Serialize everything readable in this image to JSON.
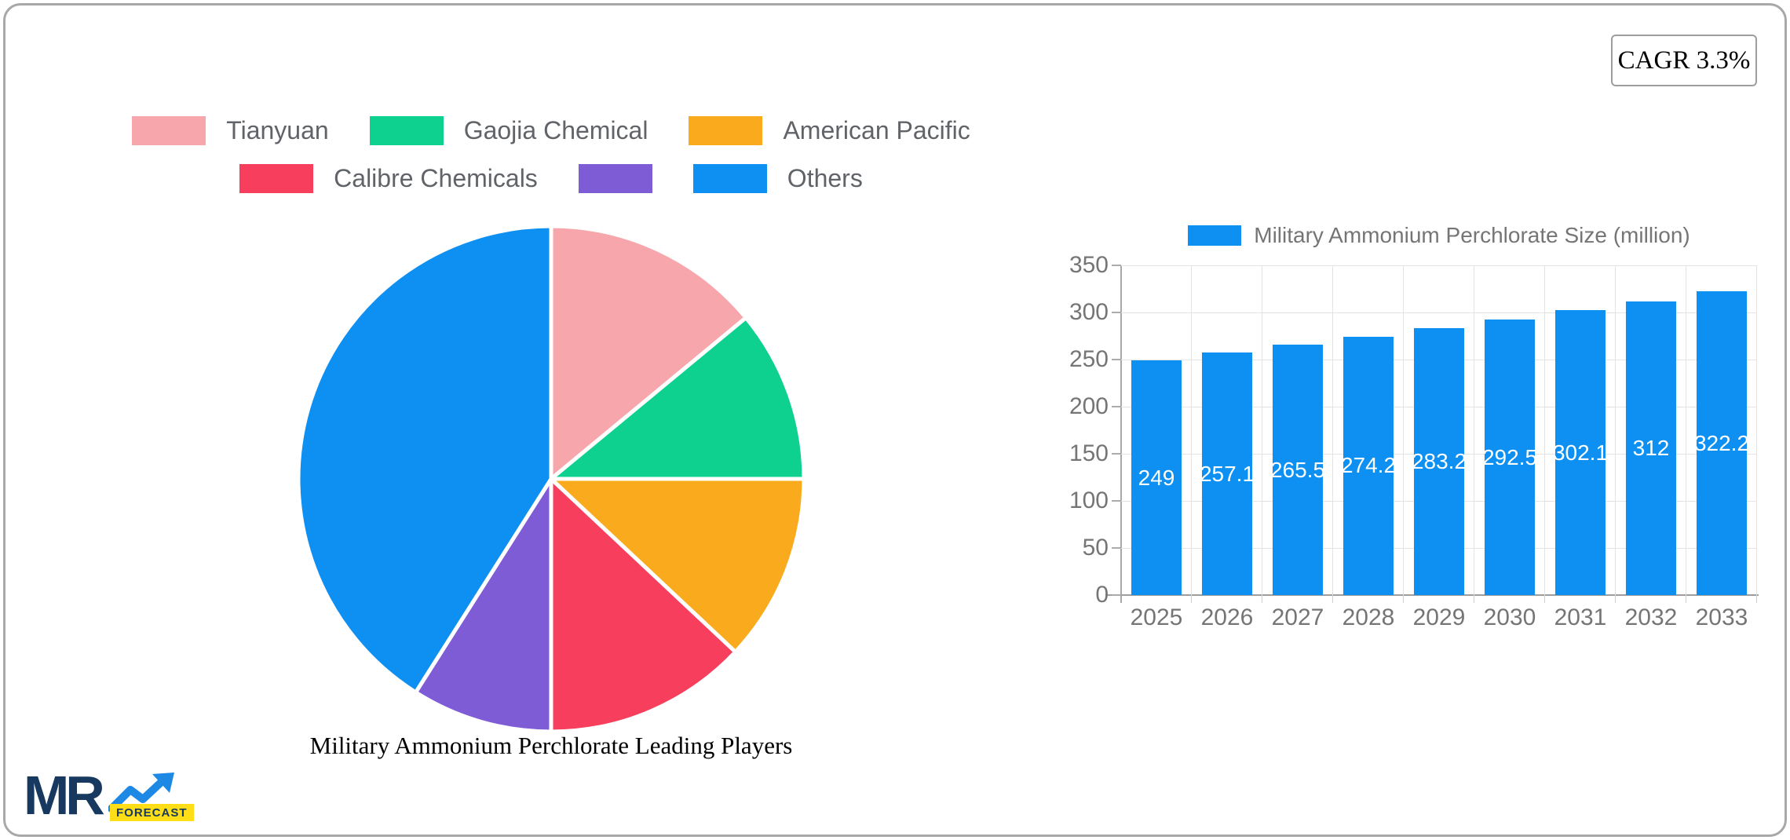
{
  "header": {
    "cagr_label": "CAGR 3.3%"
  },
  "logo": {
    "mr": "MR",
    "forecast": "FORECAST"
  },
  "chart_data": [
    {
      "type": "pie",
      "title": "Military Ammonium Perchlorate Leading Players",
      "labels": [
        "Tianyuan",
        "Gaojia Chemical",
        "American Pacific",
        "Calibre Chemicals",
        "",
        "Others"
      ],
      "values_percent": [
        14,
        11,
        12,
        13,
        9,
        41
      ],
      "colors": [
        "#F7A6AB",
        "#0FD18F",
        "#F9AB1D",
        "#F73E5C",
        "#7E5CD6",
        "#0E8FF2"
      ],
      "legend_rows": [
        [
          0,
          1,
          2
        ],
        [
          3,
          4,
          5
        ]
      ],
      "start_angle_deg": 0,
      "direction": "clockwise",
      "legend_position": "top"
    },
    {
      "type": "bar",
      "categories": [
        "2025",
        "2026",
        "2027",
        "2028",
        "2029",
        "2030",
        "2031",
        "2032",
        "2033"
      ],
      "series": [
        {
          "name": "Military Ammonium Perchlorate Size (million)",
          "values": [
            249,
            257.1,
            265.5,
            274.2,
            283.2,
            292.5,
            302.1,
            312,
            322.2
          ],
          "color": "#0E8FF2"
        }
      ],
      "ylabel": "",
      "xlabel": "",
      "ylim": [
        0,
        350
      ],
      "ytick_step": 50,
      "grid": true,
      "value_labels": "inside-center",
      "legend_position": "top"
    }
  ]
}
